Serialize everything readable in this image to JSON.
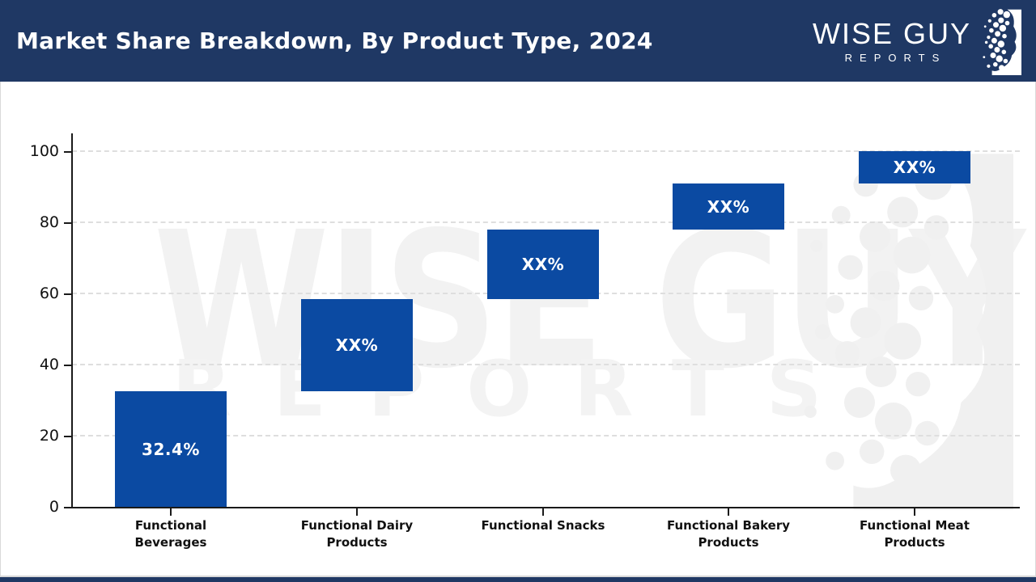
{
  "header": {
    "title": "Market Share Breakdown, By Product Type, 2024",
    "logo": {
      "line1": "WISE GUY",
      "line2": "REPORTS"
    }
  },
  "watermark": {
    "line1": "WISE GUY",
    "line2": "REPORTS"
  },
  "colors": {
    "header_bg": "#1f3864",
    "bar": "#0b4aa2",
    "bar_label": "#ffffff",
    "grid": "#dedede",
    "axis": "#1a1a1a",
    "watermark": "#f2f2f2"
  },
  "chart_data": {
    "type": "bar",
    "subtype": "waterfall-cumulative",
    "title": "Market Share Breakdown, By Product Type, 2024",
    "categories": [
      "Functional Beverages",
      "Functional Dairy Products",
      "Functional Snacks",
      "Functional Bakery Products",
      "Functional Meat Products"
    ],
    "category_lines": [
      [
        "Functional",
        "Beverages"
      ],
      [
        "Functional Dairy",
        "Products"
      ],
      [
        "Functional Snacks"
      ],
      [
        "Functional Bakery",
        "Products"
      ],
      [
        "Functional Meat",
        "Products"
      ]
    ],
    "bars": [
      {
        "label": "32.4%",
        "start": 0,
        "end": 32.4
      },
      {
        "label": "XX%",
        "start": 32.4,
        "end": 58.4
      },
      {
        "label": "XX%",
        "start": 58.4,
        "end": 78
      },
      {
        "label": "XX%",
        "start": 78,
        "end": 91
      },
      {
        "label": "XX%",
        "start": 91,
        "end": 100
      }
    ],
    "xlabel": "",
    "ylabel": "",
    "ylim": [
      0,
      100
    ],
    "yticks": [
      0,
      20,
      40,
      60,
      80,
      100
    ],
    "grid": "horizontal-dashed",
    "legend": "none"
  }
}
